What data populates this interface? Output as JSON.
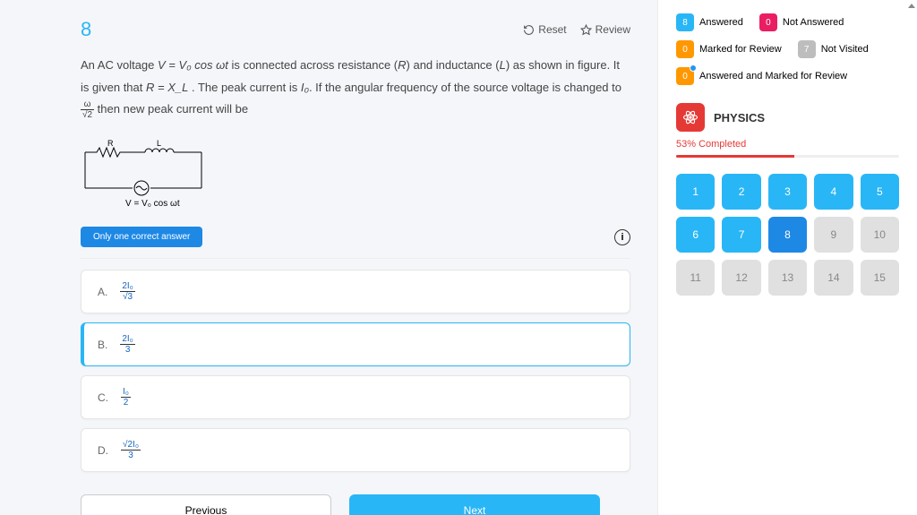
{
  "question": {
    "number": "8",
    "actions": {
      "reset": "Reset",
      "review": "Review"
    },
    "text_parts": {
      "p1": "An AC voltage ",
      "p2": " is connected across resistance (",
      "p3": ") and inductance (",
      "p4": ") as shown in figure. It is given that ",
      "p5": " . The peak current is ",
      "p6": ". If the angular frequency of the source voltage is changed to ",
      "p7": " then new peak current will be"
    },
    "formulas": {
      "voltage": "V = V₀ cos ωt",
      "r": "R",
      "l": "L",
      "rxl": "R = X_L",
      "i0": "I₀",
      "omega_frac_num": "ω",
      "omega_frac_den": "√2"
    },
    "circuit": {
      "r_label": "R",
      "l_label": "L",
      "source_label": "V = V₀ cos ωt"
    },
    "badge": "Only one correct answer",
    "options": [
      {
        "letter": "A.",
        "num": "2I₀",
        "den": "√3",
        "selected": false
      },
      {
        "letter": "B.",
        "num": "2I₀",
        "den": "3",
        "selected": true
      },
      {
        "letter": "C.",
        "num": "I₀",
        "den": "2",
        "selected": false
      },
      {
        "letter": "D.",
        "num": "√2I₀",
        "den": "3",
        "selected": false
      }
    ]
  },
  "nav": {
    "prev": "Previous",
    "next": "Next"
  },
  "sidebar": {
    "legend": [
      {
        "box_class": "cyan",
        "num": "8",
        "label": "Answered",
        "dot": false
      },
      {
        "box_class": "magenta",
        "num": "0",
        "label": "Not Answered",
        "dot": false
      },
      {
        "box_class": "orange",
        "num": "0",
        "label": "Marked for Review",
        "dot": false
      },
      {
        "box_class": "grey",
        "num": "7",
        "label": "Not Visited",
        "dot": false
      },
      {
        "box_class": "orange",
        "num": "0",
        "label": "Answered and Marked for Review",
        "dot": true
      }
    ],
    "subject": "PHYSICS",
    "progress_label": "53% Completed",
    "progress_percent": 53,
    "grid": [
      {
        "n": "1",
        "state": "answered"
      },
      {
        "n": "2",
        "state": "answered"
      },
      {
        "n": "3",
        "state": "answered"
      },
      {
        "n": "4",
        "state": "answered"
      },
      {
        "n": "5",
        "state": "answered"
      },
      {
        "n": "6",
        "state": "answered"
      },
      {
        "n": "7",
        "state": "answered"
      },
      {
        "n": "8",
        "state": "current"
      },
      {
        "n": "9",
        "state": "notvisited"
      },
      {
        "n": "10",
        "state": "notvisited"
      },
      {
        "n": "11",
        "state": "notvisited"
      },
      {
        "n": "12",
        "state": "notvisited"
      },
      {
        "n": "13",
        "state": "notvisited"
      },
      {
        "n": "14",
        "state": "notvisited"
      },
      {
        "n": "15",
        "state": "notvisited"
      }
    ]
  },
  "colors": {
    "primary": "#29b6f6",
    "dark_blue": "#1e88e5",
    "red": "#e53935",
    "orange": "#ff9800",
    "magenta": "#e91e63",
    "grey": "#bdbdbd"
  }
}
